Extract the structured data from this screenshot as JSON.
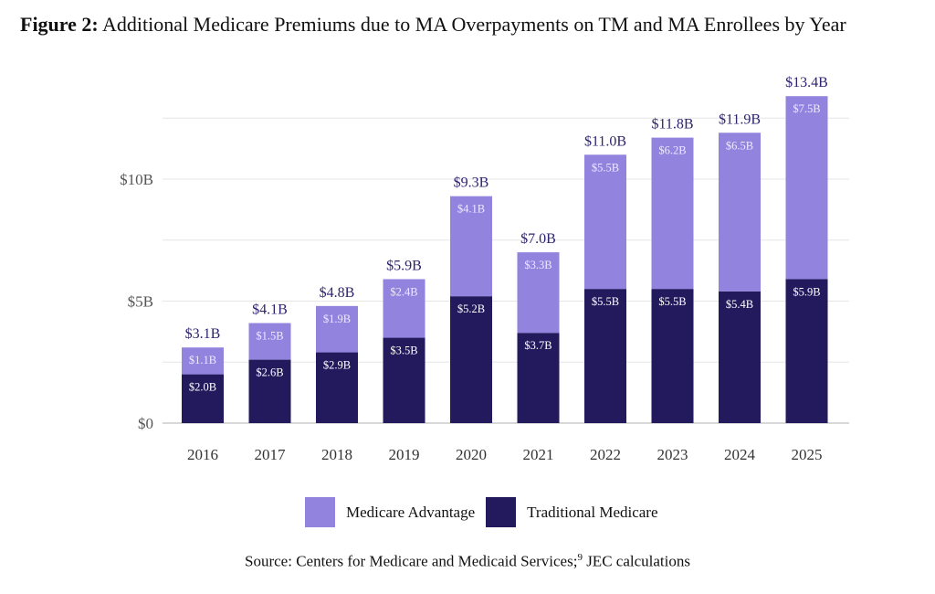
{
  "title": {
    "prefix": "Figure 2:",
    "text": " Additional Medicare Premiums due to MA Overpayments on TM and MA Enrollees by Year"
  },
  "source": {
    "prefix": "Source: Centers for Medicare and Medicaid Services;",
    "footnote": "9",
    "suffix": " JEC calculations"
  },
  "colors": {
    "medicare_advantage": "#9183de",
    "traditional_medicare": "#231a5e",
    "total_label": "#2e2470",
    "axis_text": "#555555",
    "grid": "#e6e6e6"
  },
  "chart_data": {
    "type": "bar",
    "stacked": true,
    "title": "Figure 2: Additional Medicare Premiums due to MA Overpayments on TM and MA Enrollees by Year",
    "xlabel": "",
    "ylabel": "",
    "categories": [
      "2016",
      "2017",
      "2018",
      "2019",
      "2020",
      "2021",
      "2022",
      "2023",
      "2024",
      "2025"
    ],
    "series": [
      {
        "name": "Traditional Medicare",
        "values": [
          2.0,
          2.6,
          2.9,
          3.5,
          5.2,
          3.7,
          5.5,
          5.5,
          5.4,
          5.9
        ],
        "labels": [
          "$2.0B",
          "$2.6B",
          "$2.9B",
          "$3.5B",
          "$5.2B",
          "$3.7B",
          "$5.5B",
          "$5.5B",
          "$5.4B",
          "$5.9B"
        ]
      },
      {
        "name": "Medicare Advantage",
        "values": [
          1.1,
          1.5,
          1.9,
          2.4,
          4.1,
          3.3,
          5.5,
          6.2,
          6.5,
          7.5
        ],
        "labels": [
          "$1.1B",
          "$1.5B",
          "$1.9B",
          "$2.4B",
          "$4.1B",
          "$3.3B",
          "$5.5B",
          "$6.2B",
          "$6.5B",
          "$7.5B"
        ]
      }
    ],
    "totals": [
      3.1,
      4.1,
      4.8,
      5.9,
      9.3,
      7.0,
      11.0,
      11.8,
      11.9,
      13.4
    ],
    "total_labels": [
      "$3.1B",
      "$4.1B",
      "$4.8B",
      "$5.9B",
      "$9.3B",
      "$7.0B",
      "$11.0B",
      "$11.8B",
      "$11.9B",
      "$13.4B"
    ],
    "yticks": [
      0,
      5,
      10
    ],
    "ytick_labels": [
      "$0",
      "$5B",
      "$10B"
    ],
    "gridlines": [
      0,
      2.5,
      5,
      7.5,
      10,
      12.5
    ],
    "ylim": [
      0,
      13.4
    ],
    "grid": true,
    "legend": {
      "placement": "bottom",
      "entries": [
        "Medicare Advantage",
        "Traditional Medicare"
      ]
    }
  }
}
